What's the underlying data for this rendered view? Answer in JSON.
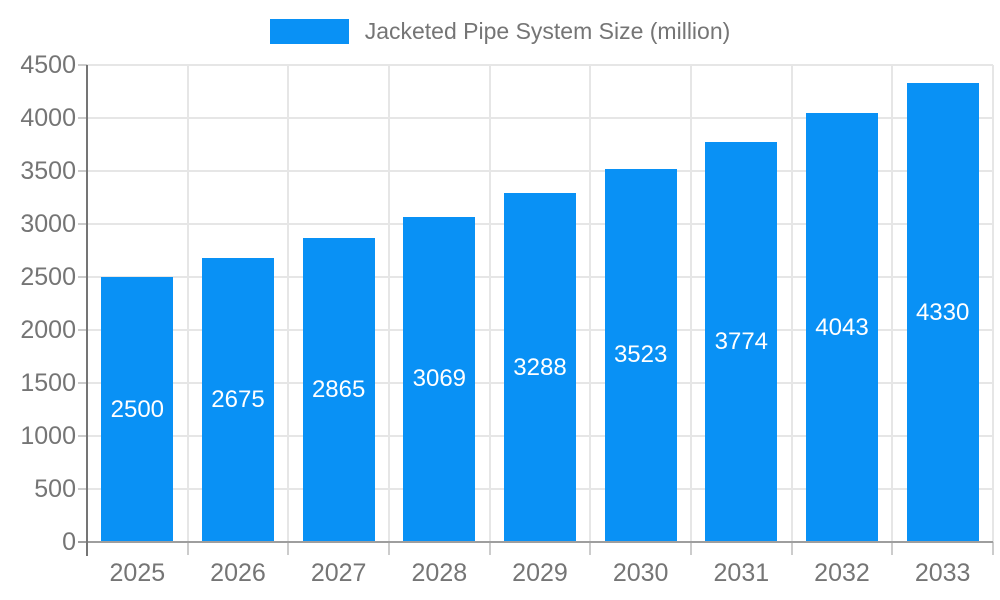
{
  "legend": {
    "label": "Jacketed Pipe System Size (million)"
  },
  "colors": {
    "bar": "#0991F5",
    "bar_label_text": "#ffffff",
    "axis_text": "#757575",
    "gridline": "#e6e6e6",
    "tick": "#cccccc",
    "baseline": "#9e9e9e",
    "yaxis_line": "#757575",
    "background": "#ffffff"
  },
  "chart_data": {
    "type": "bar",
    "title": "Jacketed Pipe System Size (million)",
    "series_name": "Jacketed Pipe System Size (million)",
    "categories": [
      "2025",
      "2026",
      "2027",
      "2028",
      "2029",
      "2030",
      "2031",
      "2032",
      "2033"
    ],
    "values": [
      2500,
      2675,
      2865,
      3069,
      3288,
      3523,
      3774,
      4043,
      4330
    ],
    "xlabel": "",
    "ylabel": "",
    "ylim": [
      0,
      4500
    ],
    "ytick_step": 500,
    "ytick_labels": [
      "0",
      "500",
      "1000",
      "1500",
      "2000",
      "2500",
      "3000",
      "3500",
      "4000",
      "4500"
    ],
    "grid": true,
    "legend_position": "top",
    "bar_labels_inside": true
  }
}
